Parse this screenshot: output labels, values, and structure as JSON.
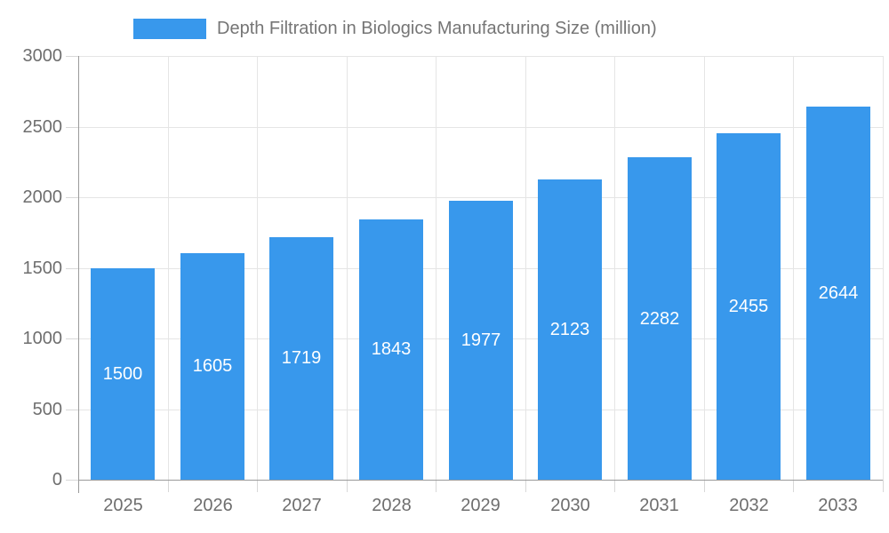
{
  "chart_data": {
    "type": "bar",
    "title": "Depth Filtration in Biologics Manufacturing Size (million)",
    "categories": [
      "2025",
      "2026",
      "2027",
      "2028",
      "2029",
      "2030",
      "2031",
      "2032",
      "2033"
    ],
    "values": [
      1500,
      1605,
      1719,
      1843,
      1977,
      2123,
      2282,
      2455,
      2644
    ],
    "xlabel": "",
    "ylabel": "",
    "ylim": [
      0,
      3000
    ],
    "yticks": [
      0,
      500,
      1000,
      1500,
      2000,
      2500,
      3000
    ],
    "grid": true,
    "legend_position": "top",
    "value_labels": "inside-center"
  },
  "colors": {
    "bar": "#3898EC",
    "value_label": "#FFFFFF",
    "axis": "#9A9A9A",
    "grid": "#E5E5E5",
    "tick": "#D8D8D8",
    "tick_label": "#6E6E6E",
    "title": "#757575",
    "background": "#FFFFFF"
  }
}
